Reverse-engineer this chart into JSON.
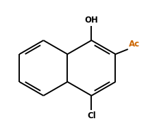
{
  "bg_color": "#ffffff",
  "bond_color": "#000000",
  "oh_color": "#000000",
  "ac_color": "#cc6600",
  "cl_color": "#000000",
  "bond_width": 1.4,
  "dbo": 0.1,
  "font_size_label": 8.5,
  "oh_label": "OH",
  "ac_label": "Ac",
  "cl_label": "Cl",
  "figsize": [
    2.13,
    1.99
  ],
  "dpi": 100
}
